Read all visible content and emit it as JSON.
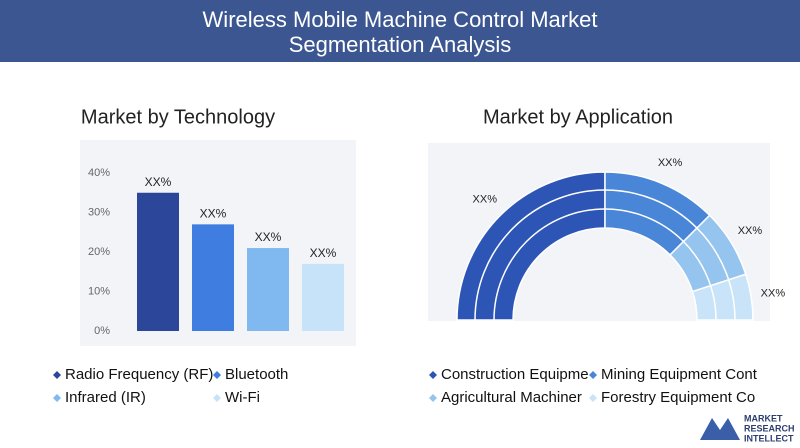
{
  "header": {
    "title": "Wireless Mobile Machine Control Market Segmentation Analysis"
  },
  "chart_data": [
    {
      "type": "bar",
      "title": "Market by Technology",
      "categories": [
        "Radio Frequency (RF)",
        "Bluetooth",
        "Infrared (IR)",
        "Wi-Fi"
      ],
      "values": [
        35,
        27,
        21,
        17
      ],
      "value_labels": [
        "XX%",
        "XX%",
        "XX%",
        "XX%"
      ],
      "colors": [
        "#2c4799",
        "#3f7de0",
        "#80b9f0",
        "#c7e3fa"
      ],
      "ylim": [
        0,
        40
      ],
      "yticks": [
        {
          "value": 0,
          "label": "0%"
        },
        {
          "value": 10,
          "label": "10%"
        },
        {
          "value": 20,
          "label": "20%"
        },
        {
          "value": 30,
          "label": "30%"
        },
        {
          "value": 40,
          "label": "40%"
        }
      ]
    },
    {
      "type": "semi-donut",
      "title": "Market by Application",
      "categories": [
        "Construction Equipme",
        "Mining Equipment Cont",
        "Agricultural Machiner",
        "Forestry Equipment Co"
      ],
      "values": [
        50,
        25,
        15,
        10
      ],
      "value_labels": [
        "XX%",
        "XX%",
        "XX%",
        "XX%"
      ],
      "colors": [
        "#2d55b5",
        "#4a86d8",
        "#95c4ee",
        "#c9e4f8"
      ]
    }
  ],
  "logo": {
    "lines": [
      "MARKET",
      "RESEARCH",
      "INTELLECT"
    ]
  }
}
